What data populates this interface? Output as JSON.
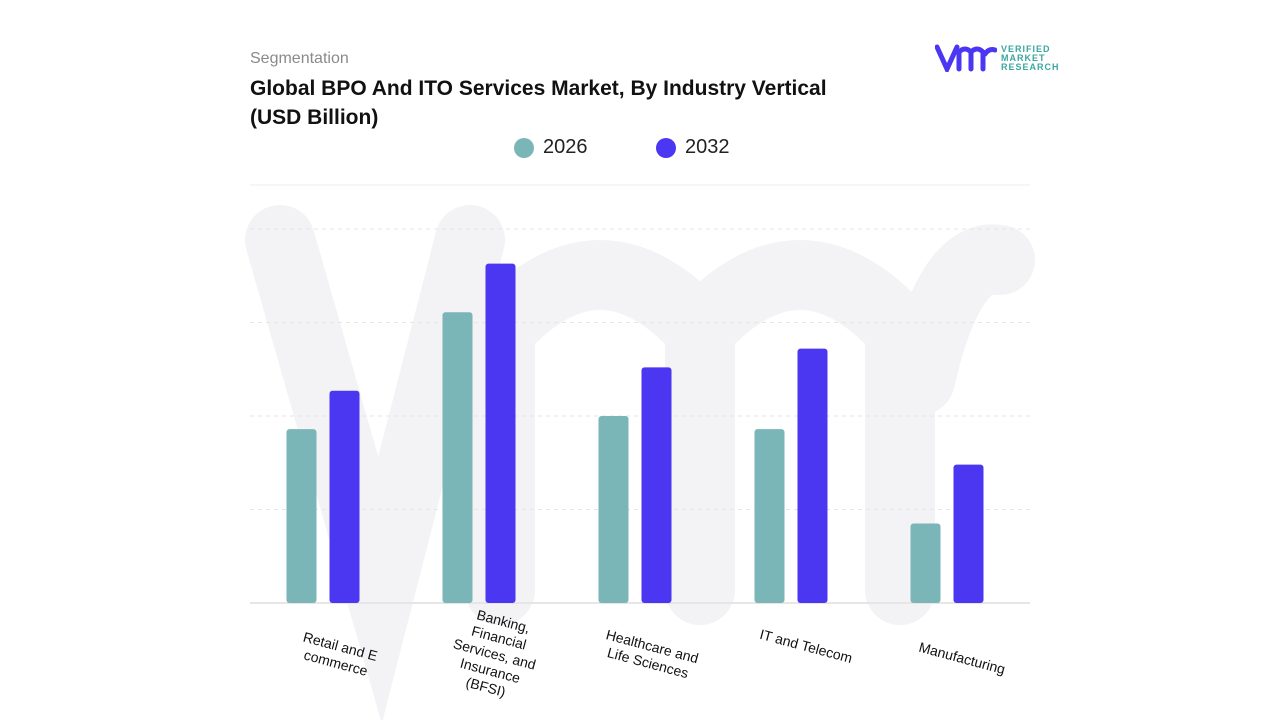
{
  "header": {
    "segment_label": "Segmentation",
    "title": "Global BPO And ITO Services Market, By Industry Vertical (USD Billion)"
  },
  "logo": {
    "text": [
      "VERIFIED",
      "MARKET",
      "RESEARCH"
    ]
  },
  "colors": {
    "2026": "#7ab5b8",
    "2032": "#4b36f2",
    "grid": "#e2e2e2"
  },
  "chart_data": {
    "type": "bar",
    "title": "Global BPO And ITO Services Market, By Industry Vertical (USD Billion)",
    "categories": [
      "Retail and E commerce",
      "Banking, Financial Services, and Insurance (BFSI)",
      "Healthcare and Life Sciences",
      "IT and Telecom",
      "Manufacturing"
    ],
    "series": [
      {
        "name": "2026",
        "values": [
          1.86,
          3.11,
          2.0,
          1.86,
          0.85
        ]
      },
      {
        "name": "2032",
        "values": [
          2.27,
          3.63,
          2.52,
          2.72,
          1.48
        ]
      }
    ],
    "ylim": [
      0,
      4
    ],
    "grid": true,
    "legend": "top-center",
    "note_units": "relative (no y-axis ticks shown)"
  }
}
